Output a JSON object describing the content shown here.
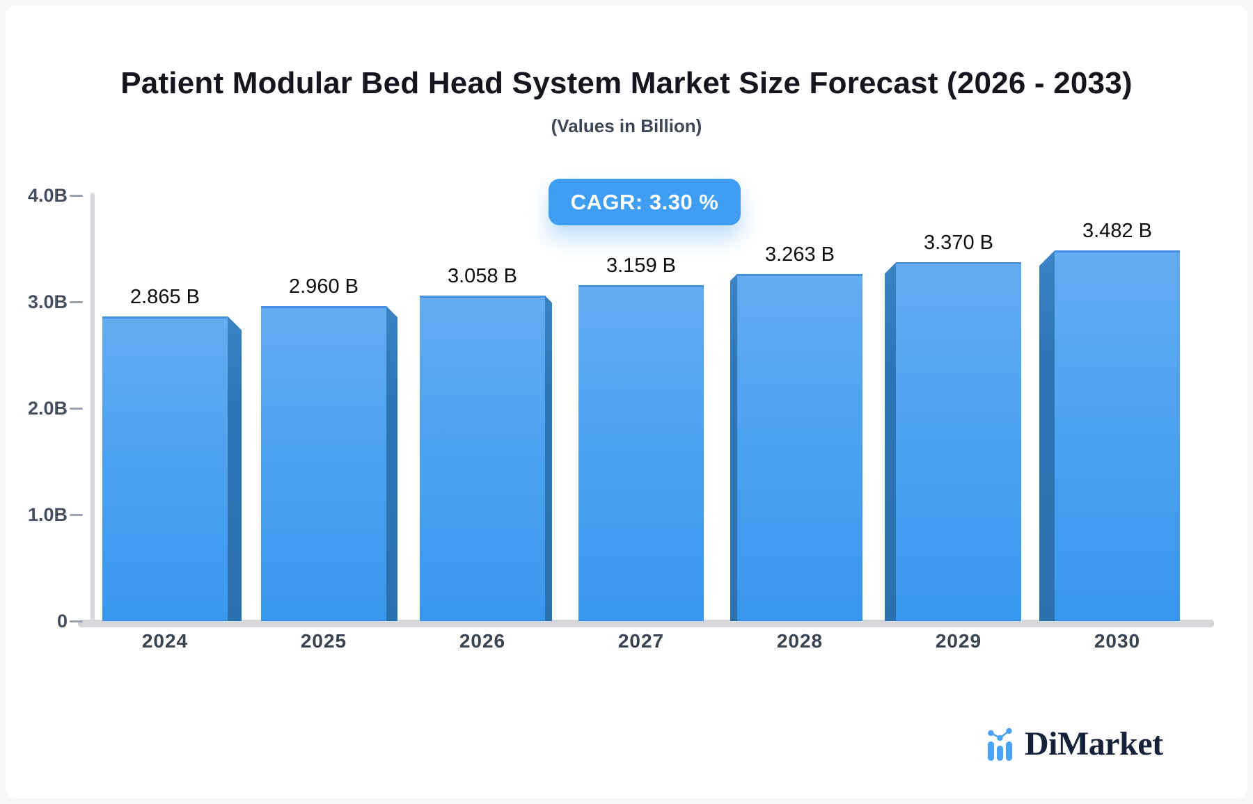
{
  "header": {
    "title": "Patient Modular Bed Head System Market Size Forecast (2026 - 2033)",
    "subtitle": "(Values in Billion)"
  },
  "badge": {
    "label": "CAGR: 3.30 %",
    "color": "#3f9df3"
  },
  "chart_data": {
    "type": "bar",
    "title": "Patient Modular Bed Head System Market Size Forecast (2026 - 2033)",
    "subtitle": "(Values in Billion)",
    "xlabel": "",
    "ylabel": "",
    "unit": "Billion",
    "categories": [
      "2024",
      "2025",
      "2026",
      "2027",
      "2028",
      "2029",
      "2030"
    ],
    "values": [
      2.865,
      2.96,
      3.058,
      3.159,
      3.263,
      3.37,
      3.482
    ],
    "value_labels": [
      "2.865 B",
      "2.960 B",
      "3.058 B",
      "3.159 B",
      "3.263 B",
      "3.370 B",
      "3.482 B"
    ],
    "y_tick_labels": [
      "4.0B",
      "3.0B",
      "2.0B",
      "1.0B",
      "0"
    ],
    "y_tick_values": [
      4.0,
      3.0,
      2.0,
      1.0,
      0
    ],
    "ylim": [
      0,
      4.0
    ],
    "grid": false,
    "legend": false,
    "cagr": "3.30 %",
    "colors": {
      "bar_top": "#64abf2",
      "bar_bottom": "#3897ee",
      "bar_side": "#2d76b6",
      "axis": "#d8d9dd",
      "tick_text": "#454e5d"
    }
  },
  "logo": {
    "text": "DiMarket",
    "icon": "mini-bar-line-chart-icon",
    "icon_color": "#4aa3f7",
    "text_color": "#16213a"
  }
}
